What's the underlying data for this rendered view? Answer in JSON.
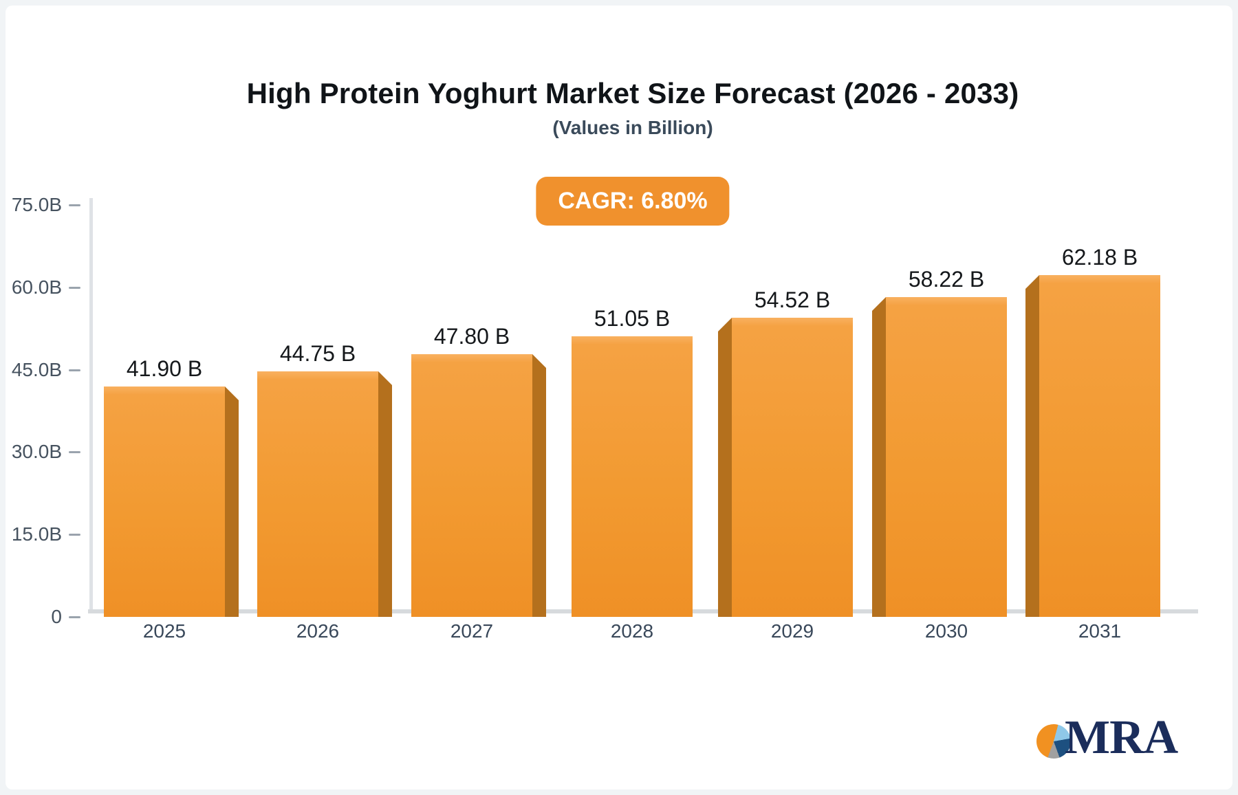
{
  "header": {
    "title": "High Protein Yoghurt Market Size Forecast (2026 - 2033)",
    "subtitle": "(Values in Billion)",
    "cagr_badge": "CAGR: 6.80%"
  },
  "chart_data": {
    "type": "bar",
    "title": "High Protein Yoghurt Market Size Forecast (2026 - 2033)",
    "subtitle": "(Values in Billion)",
    "annotation": "CAGR: 6.80%",
    "unit": "Billion",
    "categories": [
      "2025",
      "2026",
      "2027",
      "2028",
      "2029",
      "2030",
      "2031"
    ],
    "values": [
      41.9,
      44.75,
      47.8,
      51.05,
      54.52,
      58.22,
      62.18
    ],
    "value_labels": [
      "41.90 B",
      "44.75 B",
      "47.80 B",
      "51.05 B",
      "54.52 B",
      "58.22 B",
      "62.18 B"
    ],
    "yticks": [
      {
        "label": "0",
        "value": 0
      },
      {
        "label": "15.0B",
        "value": 15
      },
      {
        "label": "30.0B",
        "value": 30
      },
      {
        "label": "45.0B",
        "value": 45
      },
      {
        "label": "60.0B",
        "value": 60
      },
      {
        "label": "75.0B",
        "value": 75
      }
    ],
    "ylim": [
      0,
      75
    ],
    "grid": false,
    "legend": false,
    "bar_color": "#f4992f",
    "bar_side_color": "#b4701d",
    "bar_top_color": "#f9b160"
  },
  "colors": {
    "badge_bg": "#f0912d",
    "badge_text": "#ffffff",
    "title_text": "#101418",
    "subtitle_text": "#3a4a5a",
    "axis_label": "#46525f",
    "axis_line": "#d7dadd",
    "value_label": "#15181b",
    "logo_navy": "#1b2d5b",
    "logo_orange": "#f19121",
    "logo_lightblue": "#8fc8e8",
    "logo_blue": "#1d5080",
    "logo_gray": "#a0a0a0"
  },
  "logo": {
    "text": "MRA"
  }
}
